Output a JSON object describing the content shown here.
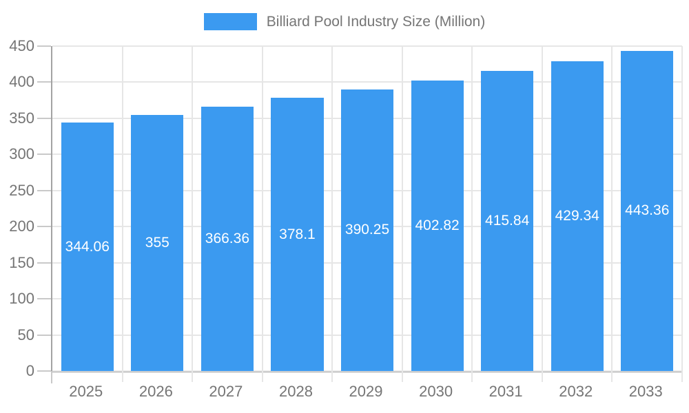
{
  "chart_data": {
    "type": "bar",
    "title": "Billiard Pool Industry Size (Million)",
    "categories": [
      "2025",
      "2026",
      "2027",
      "2028",
      "2029",
      "2030",
      "2031",
      "2032",
      "2033"
    ],
    "values": [
      344.06,
      355,
      366.36,
      378.1,
      390.25,
      402.82,
      415.84,
      429.34,
      443.36
    ],
    "value_labels": [
      "344.06",
      "355",
      "366.36",
      "378.1",
      "390.25",
      "402.82",
      "415.84",
      "429.34",
      "443.36"
    ],
    "xlabel": "",
    "ylabel": "",
    "ylim": [
      0,
      450
    ],
    "yticks": [
      0,
      50,
      100,
      150,
      200,
      250,
      300,
      350,
      400,
      450
    ],
    "grid": true,
    "legend_position": "top",
    "legend_entries": [
      "Billiard Pool Industry Size (Million)"
    ],
    "colors": {
      "bar": "#3B9AF0",
      "axis_text": "#757575",
      "grid_line": "#E6E6E6",
      "axis_line": "#A3A3A3",
      "tick_mark": "#C9C9C9",
      "bar_label": "#FFFFFF",
      "background": "#FFFFFF"
    }
  }
}
